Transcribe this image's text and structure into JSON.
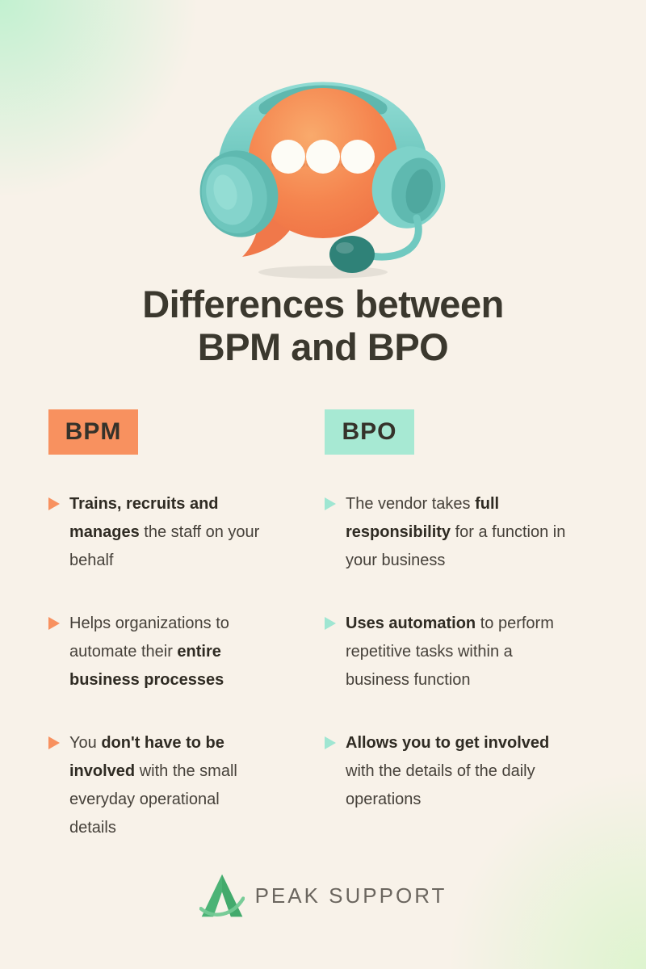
{
  "header": {
    "title_line1": "Differences between",
    "title_line2": "BPM and BPO"
  },
  "illustration": {
    "description": "3D teal support headset with orange chat bubble, three white ellipsis dots and a microphone boom",
    "icons": [
      "headset-icon",
      "chat-bubble-icon",
      "ellipsis-dots-icon",
      "microphone-icon"
    ],
    "colors": {
      "headset_teal": "#7BD0C8",
      "headset_teal_dark": "#57B2A8",
      "bubble_orange": "#F5854F",
      "mic_dark_teal": "#2F8278",
      "dots_white": "#FDFCF6"
    }
  },
  "theme": {
    "background": "#F8F2E9",
    "title_color": "#3B382E",
    "text_color": "#46413A",
    "bold_text_color": "#2F2B23",
    "corner_glow_mint": "#A5F0C3"
  },
  "columns": [
    {
      "badge": "BPM",
      "badge_color": "#F8915F",
      "bullet_color": "#F8915F",
      "bullets": [
        [
          {
            "text": "Trains, recruits and manages",
            "bold": true
          },
          {
            "text": " the staff on your behalf",
            "bold": false
          }
        ],
        [
          {
            "text": "Helps organizations to automate their ",
            "bold": false
          },
          {
            "text": "entire business processes",
            "bold": true
          }
        ],
        [
          {
            "text": "You ",
            "bold": false
          },
          {
            "text": "don't have to be involved",
            "bold": true
          },
          {
            "text": " with the small everyday operational details",
            "bold": false
          }
        ]
      ]
    },
    {
      "badge": "BPO",
      "badge_color": "#A7E9D3",
      "bullet_color": "#9FE6D2",
      "bullets": [
        [
          {
            "text": "The vendor takes ",
            "bold": false
          },
          {
            "text": "full responsibility",
            "bold": true
          },
          {
            "text": " for a function in your business",
            "bold": false
          }
        ],
        [
          {
            "text": "Uses automation",
            "bold": true
          },
          {
            "text": " to perform repetitive tasks within a business function",
            "bold": false
          }
        ],
        [
          {
            "text": "Allows you to get involved",
            "bold": true
          },
          {
            "text": " with the details of the daily operations",
            "bold": false
          }
        ]
      ]
    }
  ],
  "footer": {
    "logo_text": "PEAK SUPPORT",
    "logo_green": "#4CB376"
  }
}
